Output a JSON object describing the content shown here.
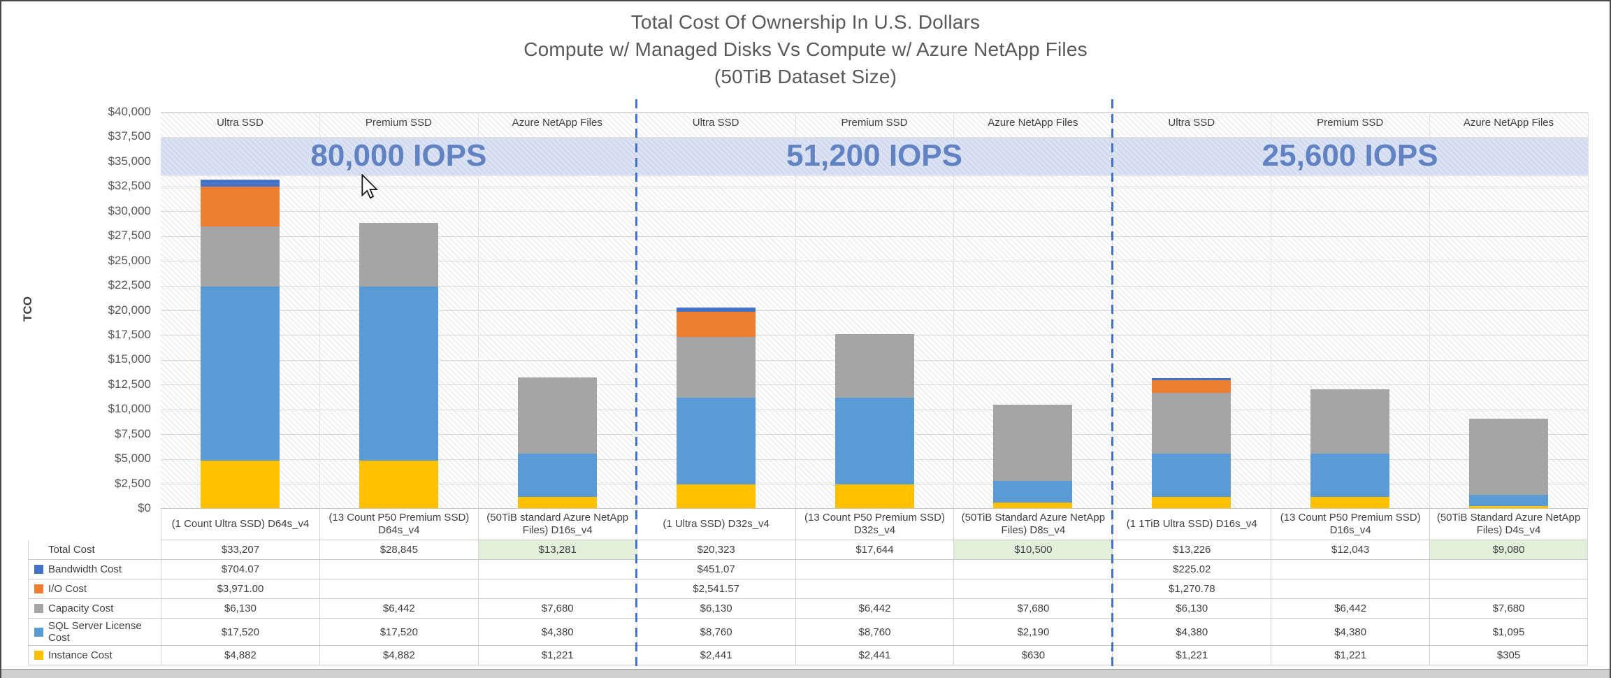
{
  "title": {
    "line1": "Total Cost Of Ownership In U.S. Dollars",
    "line2": "Compute w/ Managed Disks Vs Compute w/ Azure NetApp Files",
    "line3": "(50TiB Dataset Size)"
  },
  "y_axis": {
    "label": "TCO",
    "ticks": [
      "$0",
      "$2,500",
      "$5,000",
      "$7,500",
      "$10,000",
      "$12,500",
      "$15,000",
      "$17,500",
      "$20,000",
      "$22,500",
      "$25,000",
      "$27,500",
      "$30,000",
      "$32,500",
      "$35,000",
      "$37,500",
      "$40,000"
    ]
  },
  "groups": [
    {
      "iops_label": "80,000 IOPS",
      "columns": [
        {
          "header": "Ultra SSD",
          "category": "(1 Count Ultra SSD) D64s_v4"
        },
        {
          "header": "Premium SSD",
          "category": "(13 Count P50 Premium SSD) D64s_v4"
        },
        {
          "header": "Azure NetApp Files",
          "category": "(50TiB standard Azure NetApp Files) D16s_v4"
        }
      ]
    },
    {
      "iops_label": "51,200 IOPS",
      "columns": [
        {
          "header": "Ultra SSD",
          "category": "(1 Ultra SSD) D32s_v4"
        },
        {
          "header": "Premium SSD",
          "category": "(13 Count P50 Premium SSD) D32s_v4"
        },
        {
          "header": "Azure NetApp Files",
          "category": "(50TiB Standard Azure NetApp Files) D8s_v4"
        }
      ]
    },
    {
      "iops_label": "25,600 IOPS",
      "columns": [
        {
          "header": "Ultra SSD",
          "category": "(1 1TiB Ultra SSD) D16s_v4"
        },
        {
          "header": "Premium SSD",
          "category": "(13 Count P50 Premium SSD) D16s_v4"
        },
        {
          "header": "Azure NetApp Files",
          "category": "(50TiB Standard Azure NetApp Files) D4s_v4"
        }
      ]
    }
  ],
  "chart_data": {
    "type": "bar",
    "subtype": "stacked",
    "title": "Total Cost Of Ownership In U.S. Dollars — Compute w/ Managed Disks Vs Compute w/ Azure NetApp Files (50TiB Dataset Size)",
    "ylabel": "TCO",
    "ylim": [
      0,
      40000
    ],
    "ytick_step": 2500,
    "grid": true,
    "legend_position": "table-left",
    "annotations": [
      "80,000 IOPS",
      "51,200 IOPS",
      "25,600 IOPS"
    ],
    "annotation_band_value_range": [
      33650,
      37400
    ],
    "categories": [
      "(1 Count Ultra SSD) D64s_v4",
      "(13 Count P50 Premium SSD) D64s_v4",
      "(50TiB standard Azure NetApp Files) D16s_v4",
      "(1 Ultra SSD) D32s_v4",
      "(13 Count P50 Premium SSD) D32s_v4",
      "(50TiB Standard Azure NetApp Files) D8s_v4",
      "(1 1TiB Ultra SSD) D16s_v4",
      "(13 Count P50 Premium SSD) D16s_v4",
      "(50TiB Standard Azure NetApp Files) D4s_v4"
    ],
    "series": [
      {
        "name": "Instance Cost",
        "color": "#FFC000",
        "values": [
          4882,
          4882,
          1221,
          2441,
          2441,
          630,
          1221,
          1221,
          305
        ]
      },
      {
        "name": "SQL Server License Cost",
        "color": "#5B9BD5",
        "values": [
          17520,
          17520,
          4380,
          8760,
          8760,
          2190,
          4380,
          4380,
          1095
        ]
      },
      {
        "name": "Capacity Cost",
        "color": "#A5A5A5",
        "values": [
          6130,
          6442,
          7680,
          6130,
          6442,
          7680,
          6130,
          6442,
          7680
        ]
      },
      {
        "name": "I/O Cost",
        "color": "#ED7D31",
        "values": [
          3971,
          0,
          0,
          2541.57,
          0,
          0,
          1270.78,
          0,
          0
        ]
      },
      {
        "name": "Bandwidth Cost",
        "color": "#4472C4",
        "values": [
          704.07,
          0,
          0,
          451.07,
          0,
          0,
          225.02,
          0,
          0
        ]
      }
    ],
    "totals": [
      33207,
      28845,
      13281,
      20323,
      17644,
      10500,
      13226,
      12043,
      9080
    ]
  },
  "table": {
    "highlight_color": "#e2efda",
    "rows": [
      {
        "label": "Total Cost",
        "swatch": null,
        "highlight_cols": [
          2,
          5,
          8
        ],
        "values": [
          "$33,207",
          "$28,845",
          "$13,281",
          "$20,323",
          "$17,644",
          "$10,500",
          "$13,226",
          "$12,043",
          "$9,080"
        ]
      },
      {
        "label": "Bandwidth Cost",
        "swatch": "#4472C4",
        "highlight_cols": [],
        "values": [
          "$704.07",
          "",
          "",
          "$451.07",
          "",
          "",
          "$225.02",
          "",
          ""
        ]
      },
      {
        "label": "I/O Cost",
        "swatch": "#ED7D31",
        "highlight_cols": [],
        "values": [
          "$3,971.00",
          "",
          "",
          "$2,541.57",
          "",
          "",
          "$1,270.78",
          "",
          ""
        ]
      },
      {
        "label": "Capacity Cost",
        "swatch": "#A5A5A5",
        "highlight_cols": [],
        "values": [
          "$6,130",
          "$6,442",
          "$7,680",
          "$6,130",
          "$6,442",
          "$7,680",
          "$6,130",
          "$6,442",
          "$7,680"
        ]
      },
      {
        "label": "SQL Server License Cost",
        "swatch": "#5B9BD5",
        "highlight_cols": [],
        "values": [
          "$17,520",
          "$17,520",
          "$4,380",
          "$8,760",
          "$8,760",
          "$2,190",
          "$4,380",
          "$4,380",
          "$1,095"
        ]
      },
      {
        "label": "Instance Cost",
        "swatch": "#FFC000",
        "highlight_cols": [],
        "values": [
          "$4,882",
          "$4,882",
          "$1,221",
          "$2,441",
          "$2,441",
          "$630",
          "$1,221",
          "$1,221",
          "$305"
        ]
      }
    ]
  },
  "colors": {
    "band_fill": "#dbe2f3",
    "iops_text": "#6183c4",
    "dashed_separator": "#4472c4",
    "title_text": "#595959",
    "gridline": "#d9d9d9"
  }
}
